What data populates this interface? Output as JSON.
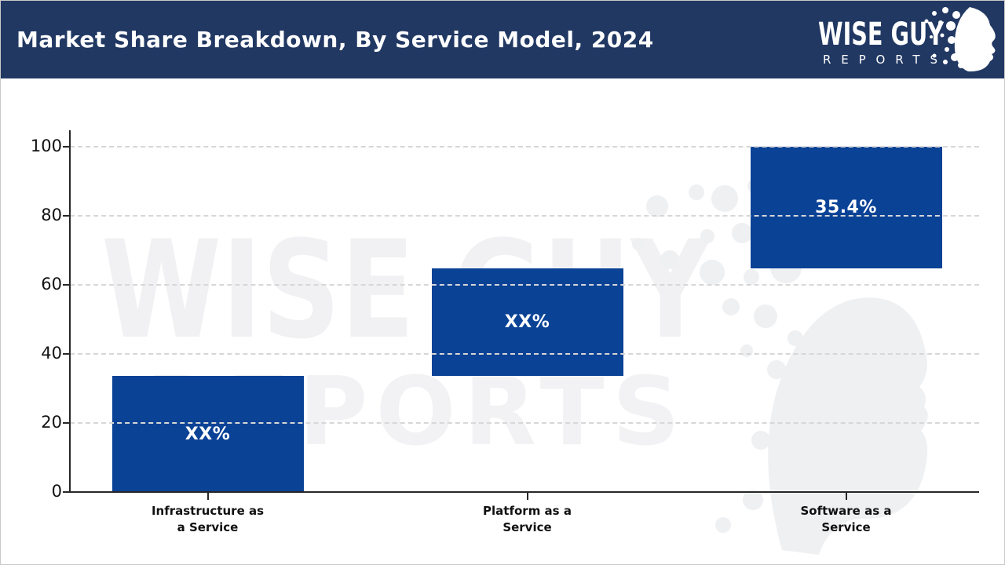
{
  "header": {
    "title": "Market Share Breakdown, By Service Model, 2024",
    "logo": {
      "line1": "WISE GUY",
      "line2": "REPORTS"
    }
  },
  "watermark": {
    "line1": "WISE GUY",
    "line2": "REPORTS"
  },
  "colors": {
    "header_bg": "#213863",
    "bar": "#0a4296",
    "grid": "#d7d7d7",
    "axis": "#262626",
    "bar_label": "#ffffff",
    "watermark": "#f1f1f3",
    "title_text": "#ffffff",
    "tick_text": "#111111"
  },
  "chart_data": {
    "type": "bar",
    "subtype": "waterfall-floating-segments",
    "title": "Market Share Breakdown, By Service Model, 2024",
    "xlabel": "",
    "ylabel": "",
    "ylim": [
      0,
      100
    ],
    "yticks": [
      0,
      20,
      40,
      60,
      80,
      100
    ],
    "yticklabels": [
      "0",
      "20",
      "40",
      "60",
      "80",
      "100"
    ],
    "grid": "horizontal dashed, drawn above bars",
    "legend": null,
    "categories": [
      "Infrastructure as a Service",
      "Platform as a Service",
      "Software as a Service"
    ],
    "category_label_lines": [
      [
        "Infrastructure as",
        "a Service"
      ],
      [
        "Platform as a",
        "Service"
      ],
      [
        "Software as a",
        "Service"
      ]
    ],
    "segments": [
      {
        "category": "Infrastructure as a Service",
        "start": 0,
        "end": 33.5,
        "value": 33.5,
        "label": "XX%"
      },
      {
        "category": "Platform as a Service",
        "start": 33.5,
        "end": 64.6,
        "value": 31.1,
        "label": "XX%"
      },
      {
        "category": "Software as a Service",
        "start": 64.6,
        "end": 100,
        "value": 35.4,
        "label": "35.4%"
      }
    ]
  }
}
